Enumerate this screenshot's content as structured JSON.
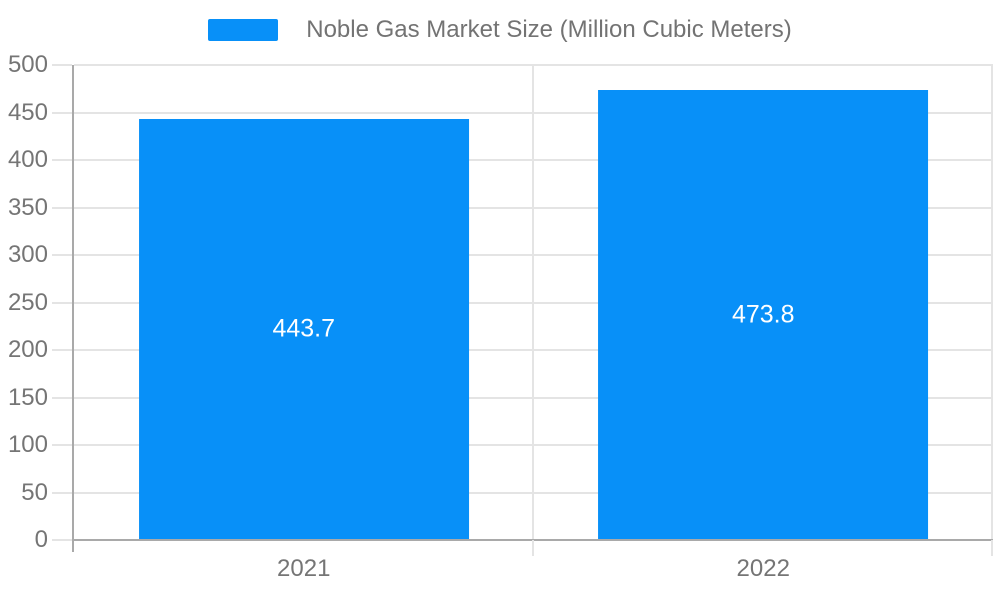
{
  "chart_data": {
    "type": "bar",
    "title": "Noble Gas Market Size (Million Cubic Meters)",
    "categories": [
      "2021",
      "2022"
    ],
    "series": [
      {
        "name": "Noble Gas Market Size (Million Cubic Meters)",
        "values": [
          443.7,
          473.8
        ]
      }
    ],
    "value_labels": [
      "443.7",
      "473.8"
    ],
    "xlabel": "",
    "ylabel": "",
    "ylim": [
      0,
      500
    ],
    "ytick_interval": 50,
    "yticks": [
      "0",
      "50",
      "100",
      "150",
      "200",
      "250",
      "300",
      "350",
      "400",
      "450",
      "500"
    ],
    "grid": true,
    "legend_position": "top-center",
    "colors": {
      "bar": "#0890f8",
      "value_label": "#ffffff",
      "axis_label": "#757575",
      "legend_text": "#737373",
      "gridline": "#e4e4e4",
      "axis_line": "#a9a9a9",
      "background": "#ffffff"
    }
  }
}
